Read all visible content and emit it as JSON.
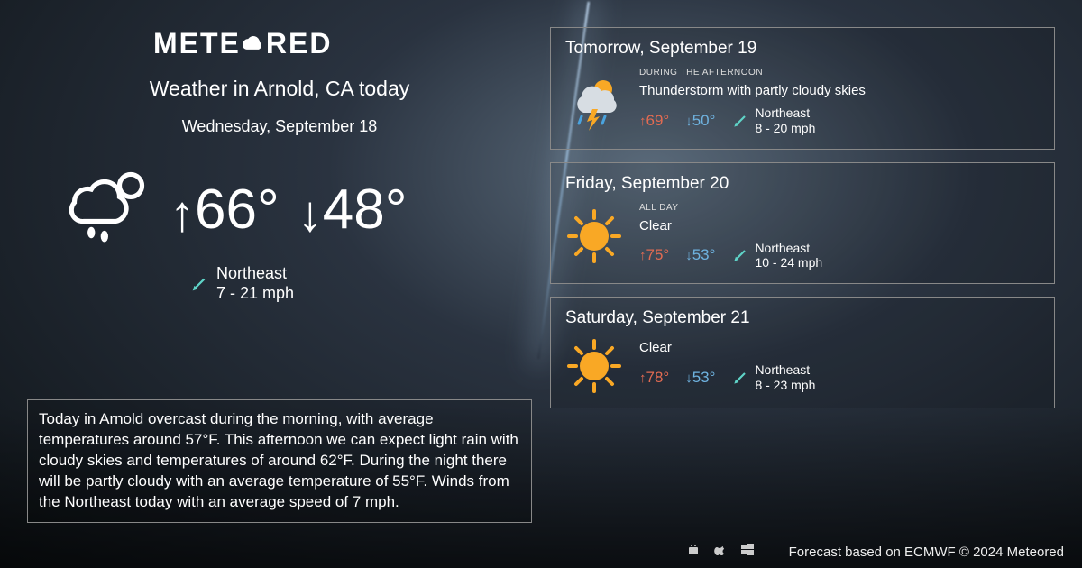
{
  "logo_text_a": "METE",
  "logo_text_b": "RED",
  "title": "Weather in Arnold, CA today",
  "date": "Wednesday, September 18",
  "today": {
    "high": "66°",
    "low": "48°",
    "wind_dir": "Northeast",
    "wind_speed": "7 - 21 mph",
    "icon": "rain-cloud-sun"
  },
  "description": "Today in Arnold overcast during the morning, with average temperatures around 57°F. This afternoon we can expect light rain with cloudy skies and temperatures of around 62°F. During the night there will be partly cloudy with an average temperature of 55°F. Winds from the Northeast today with an average speed of 7 mph.",
  "forecast": [
    {
      "date": "Tomorrow, September 19",
      "period": "DURING THE AFTERNOON",
      "cond": "Thunderstorm with partly cloudy skies",
      "high": "69°",
      "low": "50°",
      "wind_dir": "Northeast",
      "wind_speed": "8 - 20 mph",
      "icon": "thunderstorm"
    },
    {
      "date": "Friday, September 20",
      "period": "ALL DAY",
      "cond": "Clear",
      "high": "75°",
      "low": "53°",
      "wind_dir": "Northeast",
      "wind_speed": "10 - 24 mph",
      "icon": "sun"
    },
    {
      "date": "Saturday, September 21",
      "period": "",
      "cond": "Clear",
      "high": "78°",
      "low": "53°",
      "wind_dir": "Northeast",
      "wind_speed": "8 - 23 mph",
      "icon": "sun"
    }
  ],
  "footer": "Forecast based on ECMWF © 2024 Meteored",
  "colors": {
    "hi": "#e26b52",
    "lo": "#6fb3e0",
    "wind_arrow": "#5fd4c8",
    "border": "#888888",
    "text": "#ffffff"
  }
}
